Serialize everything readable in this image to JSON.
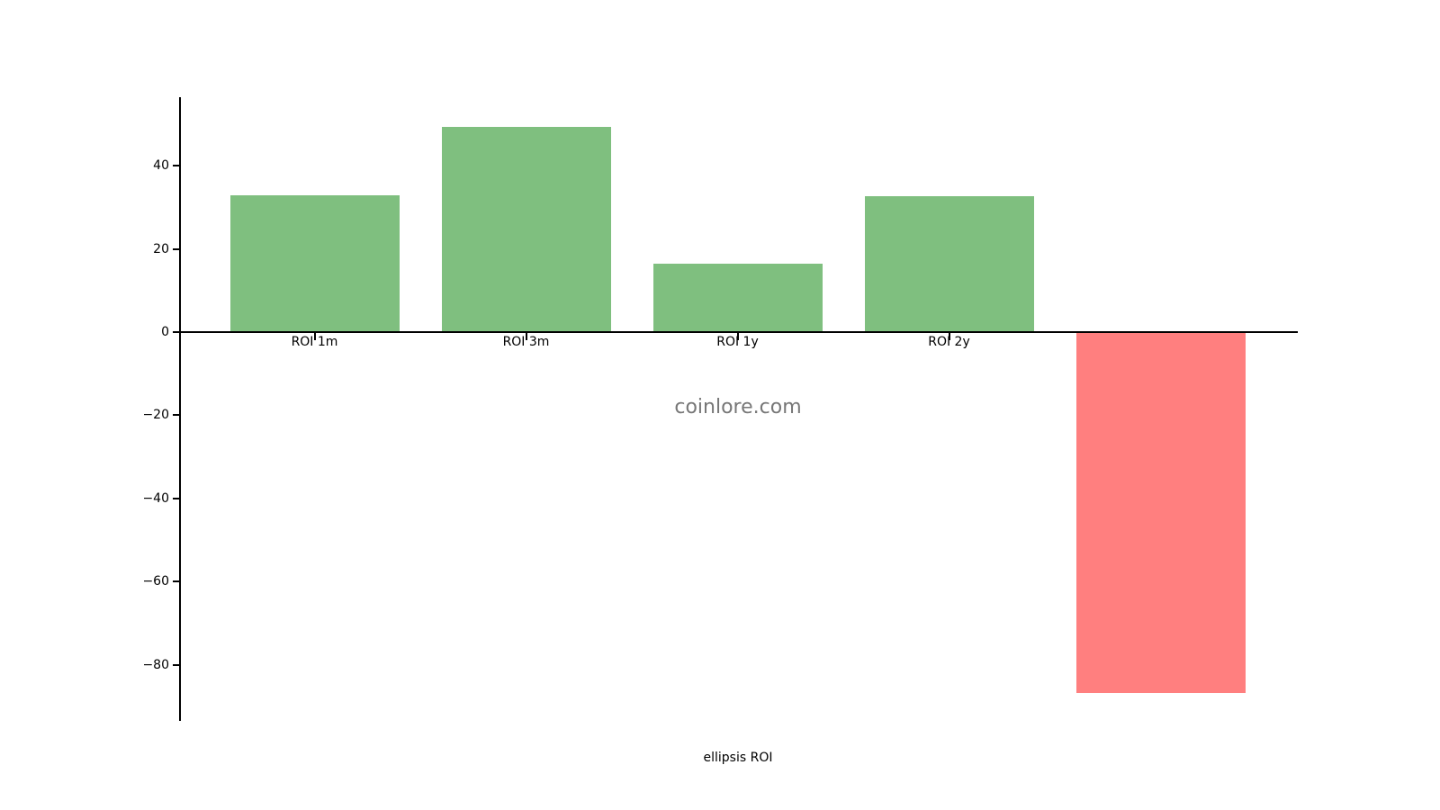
{
  "chart_data": {
    "type": "bar",
    "categories": [
      "ROI 1m",
      "ROI 3m",
      "ROI 1y",
      "ROI 2y",
      ""
    ],
    "values": [
      32.9,
      49.4,
      16.5,
      32.7,
      -86.7
    ],
    "xlabel": "ellipsis ROI",
    "watermark": "coinlore.com",
    "ytick_values": [
      40,
      20,
      0,
      -20,
      -40,
      -60,
      -80
    ],
    "ytick_labels": [
      "40",
      "20",
      "0",
      "−20",
      "−40",
      "−60",
      "−80"
    ],
    "ylim": [
      -93.5,
      56.5
    ],
    "grid": false,
    "legend": "none",
    "bar_width_ratio": 0.8,
    "colors": {
      "positive": "#7fbf7f",
      "negative": "#ff7f7f",
      "axis": "#000000",
      "tick_text": "#000000",
      "watermark_text": "#777777"
    }
  }
}
